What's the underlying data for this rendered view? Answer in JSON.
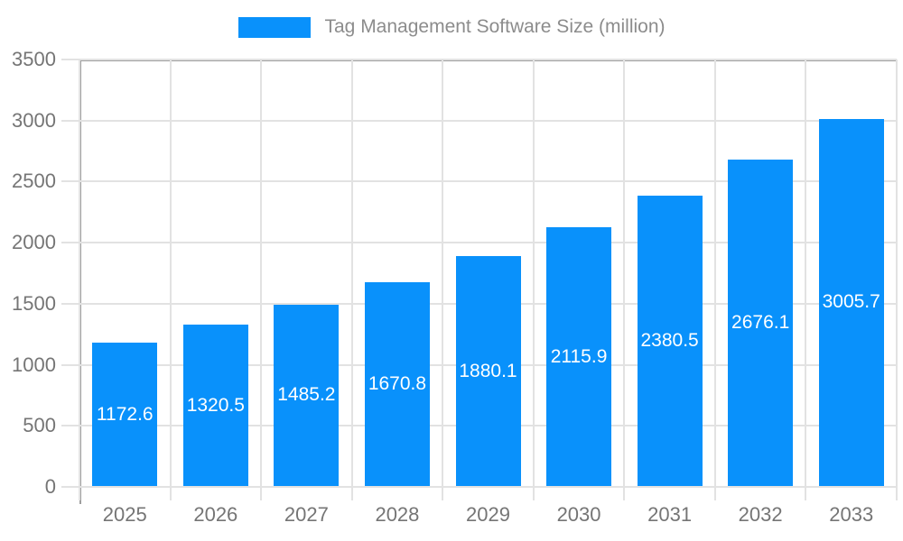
{
  "chart_data": {
    "type": "bar",
    "title": "Tag Management Software Size (million)",
    "series_name": "Tag Management Software Size (million)",
    "categories": [
      "2025",
      "2026",
      "2027",
      "2028",
      "2029",
      "2030",
      "2031",
      "2032",
      "2033"
    ],
    "values": [
      1172.6,
      1320.5,
      1485.2,
      1670.8,
      1880.1,
      2115.9,
      2380.5,
      2676.1,
      3005.7
    ],
    "xlabel": "",
    "ylabel": "",
    "ylim": [
      0,
      3500
    ],
    "yticks": [
      0,
      500,
      1000,
      1500,
      2000,
      2500,
      3000,
      3500
    ],
    "grid": true,
    "legend_position": "top",
    "data_label_position": "inside-center"
  },
  "colors": {
    "bar": "#0991fb",
    "grid": "#e2e2e2",
    "axis": "#9e9e9e",
    "tick_label": "#757575",
    "legend_label": "#8c8c8c",
    "data_label": "#ffffff",
    "background": "#ffffff"
  }
}
